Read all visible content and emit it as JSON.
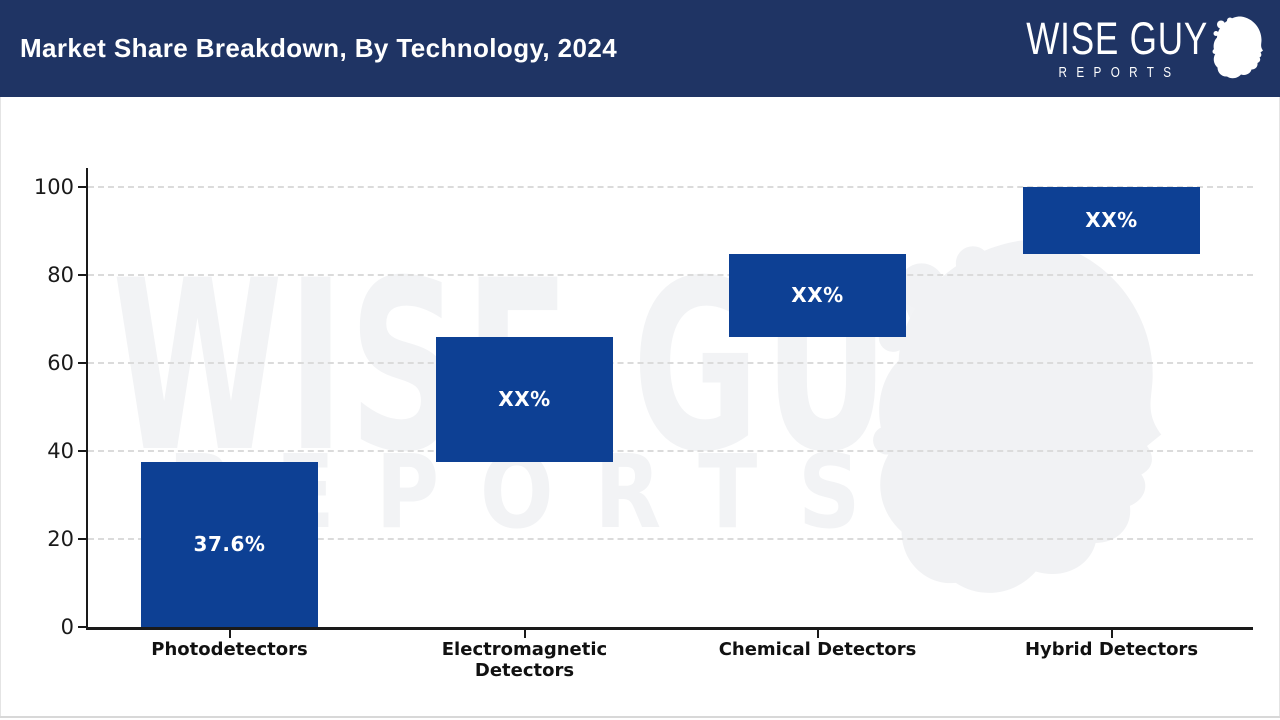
{
  "header": {
    "title": "Market Share Breakdown, By Technology, 2024",
    "bg_color": "#1F3464",
    "logo": {
      "line1": "WISE GUY",
      "line2": "REPORTS"
    }
  },
  "watermark": {
    "line1": "WISE GUY",
    "line2": "REPORTS"
  },
  "chart_data": {
    "type": "bar",
    "subtype": "floating-waterfall",
    "title": "Market Share Breakdown, By Technology, 2024",
    "categories": [
      "Photodetectors",
      "Electromagnetic Detectors",
      "Chemical Detectors",
      "Hybrid Detectors"
    ],
    "segments": [
      {
        "category": "Photodetectors",
        "start": 0,
        "end": 37.6,
        "label": "37.6%"
      },
      {
        "category": "Electromagnetic Detectors",
        "start": 37.6,
        "end": 66,
        "label": "XX%"
      },
      {
        "category": "Chemical Detectors",
        "start": 66,
        "end": 84.8,
        "label": "XX%"
      },
      {
        "category": "Hybrid Detectors",
        "start": 84.8,
        "end": 100,
        "label": "XX%"
      }
    ],
    "yticks": [
      0,
      20,
      40,
      60,
      80,
      100
    ],
    "ylim": [
      0,
      100
    ],
    "grid": "horizontal-dashed",
    "legend": "none",
    "bar_color": "#0D4094",
    "bar_label_color": "#FFFFFF",
    "axis_color": "#1A1A1A",
    "gridline_color": "#DBDBDB"
  }
}
